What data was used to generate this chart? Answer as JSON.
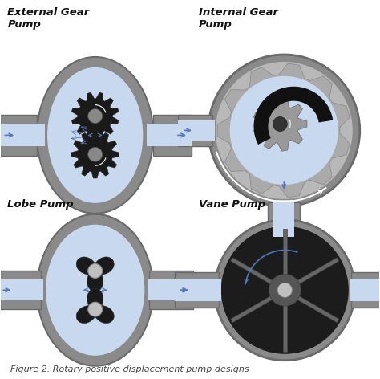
{
  "caption": "Figure 2. Rotary positive displacement pump designs",
  "background_color": "#ffffff",
  "gray_housing": "#8a8a8a",
  "gray_housing_edge": "#6a6a6a",
  "blue_light": "#c8d8ee",
  "black_gear": "#1a1a1a",
  "gray_center": "#888888",
  "labels": {
    "tl": "External Gear\nPump",
    "tr": "Internal Gear\nPump",
    "bl": "Lobe Pump",
    "br": "Vane Pump"
  },
  "label_fontsize": 9.5,
  "caption_fontsize": 8
}
